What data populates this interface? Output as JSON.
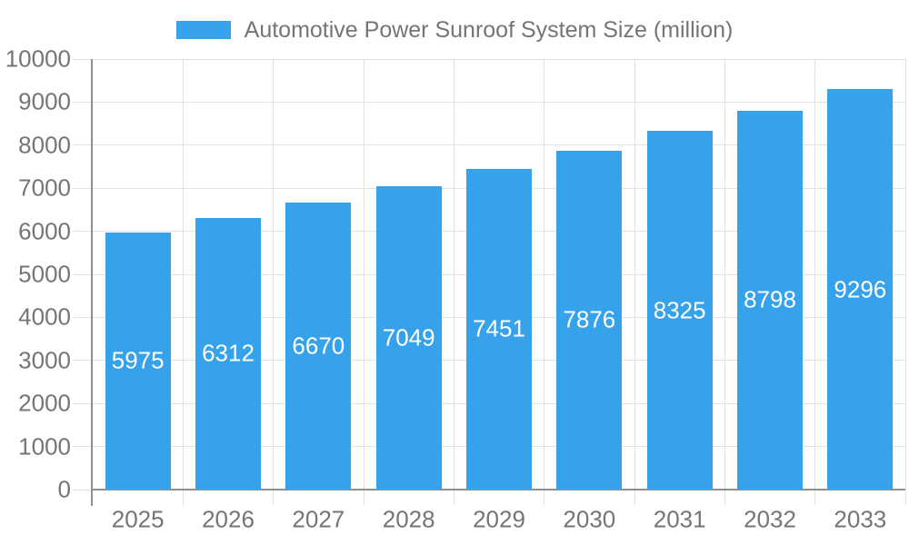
{
  "legend": {
    "position": "top"
  },
  "colors": {
    "bar": "#36A2EB",
    "grid": "#E2E2E2",
    "axis_line": "#909090",
    "axis_text": "#757575",
    "value_text": "#FFFFFF",
    "background": "#FFFFFF"
  },
  "chart_data": {
    "type": "bar",
    "title": "Automotive Power Sunroof System Size (million)",
    "categories": [
      "2025",
      "2026",
      "2027",
      "2028",
      "2029",
      "2030",
      "2031",
      "2032",
      "2033"
    ],
    "values": [
      5975,
      6312,
      6670,
      7049,
      7451,
      7876,
      8325,
      8798,
      9296
    ],
    "xlabel": "",
    "ylabel": "",
    "ylim": [
      0,
      10000
    ],
    "ytick_step": 1000,
    "ytick_labels": [
      "0",
      "1000",
      "2000",
      "3000",
      "4000",
      "5000",
      "6000",
      "7000",
      "8000",
      "9000",
      "10000"
    ],
    "grid": true,
    "legend_position": "top",
    "value_label_style": "inside-center-white"
  }
}
